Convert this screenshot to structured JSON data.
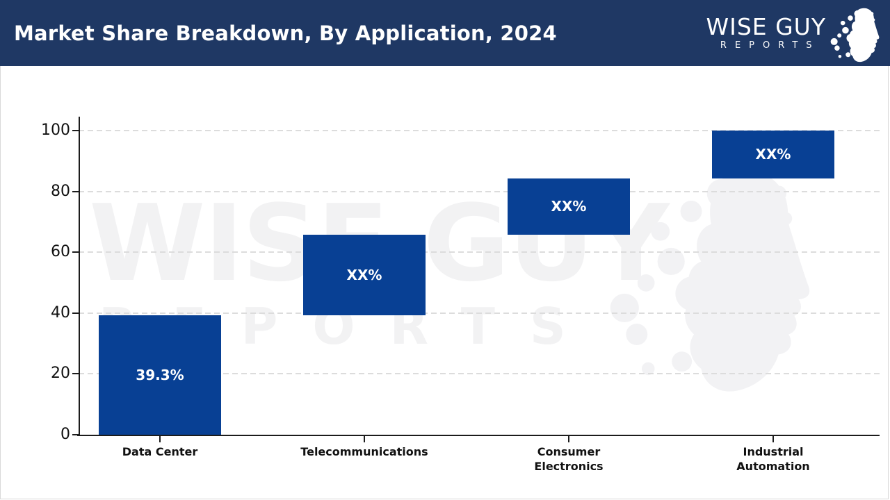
{
  "header": {
    "title": "Market Share Breakdown, By Application, 2024",
    "bg_color": "#1f3864",
    "logo": {
      "line1": "WISE GUY",
      "line2": "REPORTS"
    }
  },
  "watermark": {
    "line1": "WISE GUY",
    "line2": "REPORTS"
  },
  "chart_data": {
    "type": "bar",
    "subtype": "waterfall",
    "title": "Market Share Breakdown, By Application, 2024",
    "categories": [
      {
        "lines": [
          "Data Center"
        ]
      },
      {
        "lines": [
          "Telecommunications"
        ]
      },
      {
        "lines": [
          "Consumer",
          "Electronics"
        ]
      },
      {
        "lines": [
          "Industrial",
          "Automation"
        ]
      }
    ],
    "segments": [
      {
        "category": "Data Center",
        "start": 0,
        "end": 39.3,
        "label": "39.3%"
      },
      {
        "category": "Telecommunications",
        "start": 39.3,
        "end": 65.7,
        "label": "XX%"
      },
      {
        "category": "Consumer Electronics",
        "start": 65.7,
        "end": 84.3,
        "label": "XX%"
      },
      {
        "category": "Industrial Automation",
        "start": 84.3,
        "end": 100,
        "label": "XX%"
      }
    ],
    "yticks": [
      0,
      20,
      40,
      60,
      80,
      100
    ],
    "ylim": [
      0,
      104.5
    ],
    "ylabel": "",
    "xlabel": "",
    "bar_color": "#084094",
    "grid": "dashed horizontal",
    "legend": "none"
  }
}
